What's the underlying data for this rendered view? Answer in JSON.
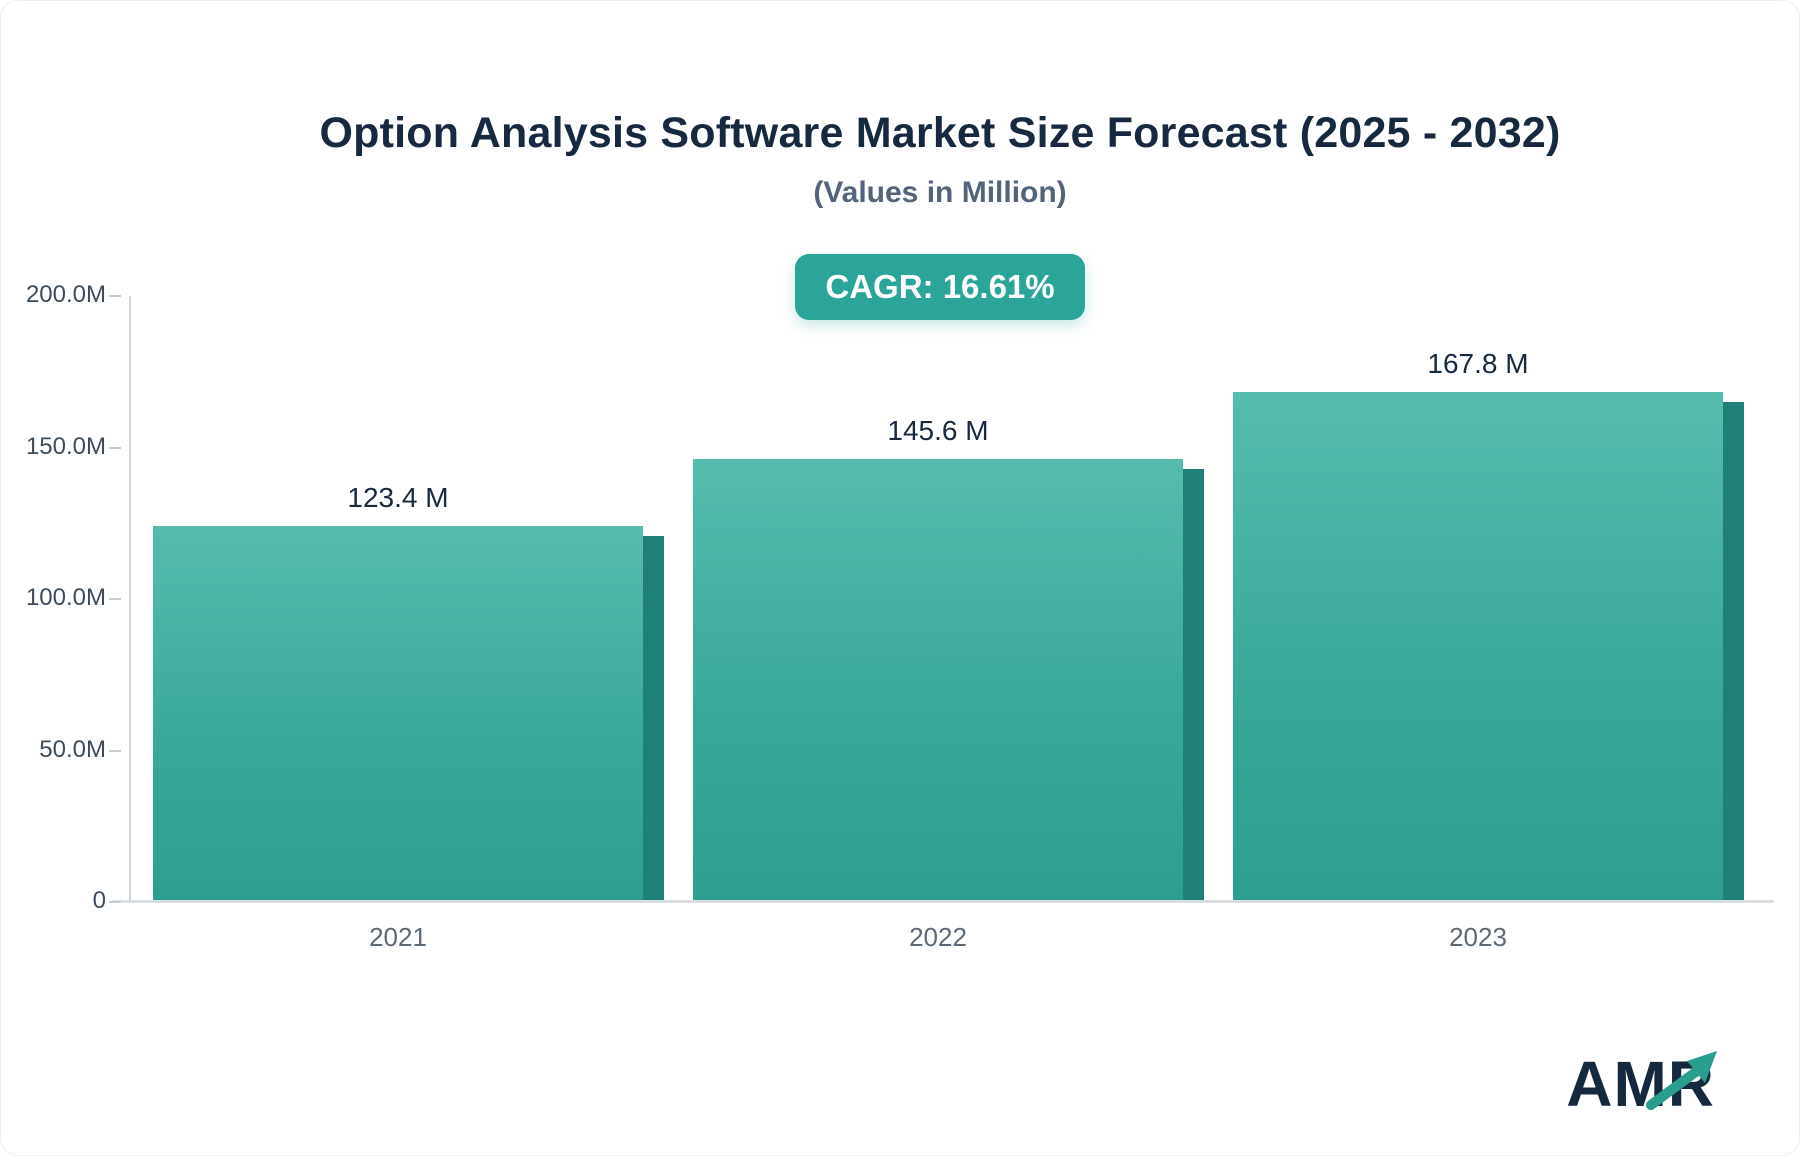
{
  "header": {
    "title": "Option Analysis Software Market Size Forecast (2025 - 2032)",
    "subtitle": "(Values in Million)",
    "badge": "CAGR: 16.61%"
  },
  "logo": {
    "text": "AMR"
  },
  "colors": {
    "accent_teal": "#2a9d8f",
    "bar_top": "#56bcae",
    "bar_bottom": "#2d9e90",
    "bar_side": "#1f8078",
    "badge_bg": "#2ba49a",
    "title_navy": "#16293f"
  },
  "chart_data": {
    "type": "bar",
    "title": "Option Analysis Software Market Size Forecast (2025 - 2032)",
    "subtitle": "(Values in Million)",
    "annotation": "CAGR: 16.61%",
    "categories": [
      "2021",
      "2022",
      "2023"
    ],
    "values": [
      123.4,
      145.6,
      167.8
    ],
    "unit": "M",
    "value_labels": [
      "123.4 M",
      "145.6 M",
      "167.8 M"
    ],
    "xlabel": "",
    "ylabel": "",
    "ylim": [
      0,
      200
    ],
    "yticks": [
      {
        "label": "200.0M",
        "value": 200
      },
      {
        "label": "150.0M",
        "value": 150
      },
      {
        "label": "100.0M",
        "value": 100
      },
      {
        "label": "50.0M",
        "value": 50
      },
      {
        "label": "0",
        "value": 0
      }
    ],
    "grid": false,
    "legend": false
  }
}
